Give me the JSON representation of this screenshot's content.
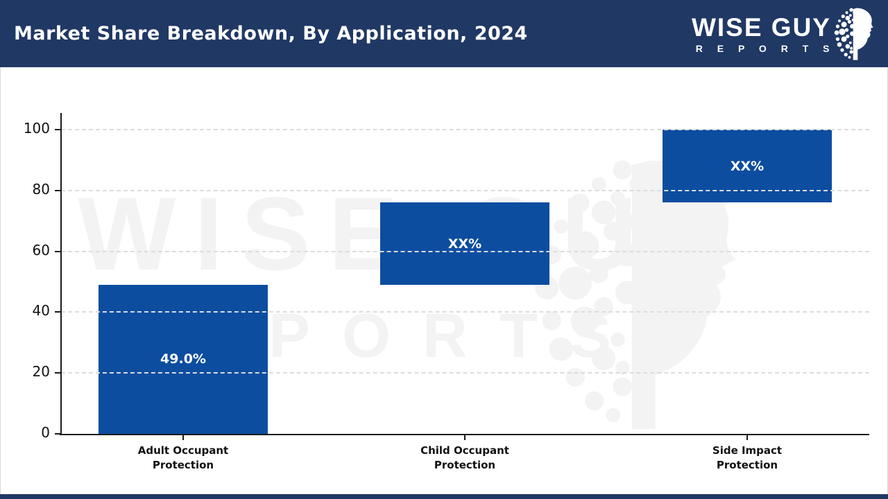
{
  "header": {
    "title": "Market Share Breakdown, By Application, 2024",
    "brand": {
      "name": "WISE GUY",
      "sub": "R E P O R T S"
    }
  },
  "watermark": {
    "line1": "WISE GUY",
    "line2": "REPORTS"
  },
  "colors": {
    "header_bg": "#203864",
    "bar_fill": "#0c4da0",
    "bar_label": "#ffffff",
    "grid": "#dcdcdc",
    "axis": "#1a1a1a",
    "tick_label": "#111111",
    "watermark": "#f3f3f3"
  },
  "chart_data": {
    "type": "bar",
    "subtype": "waterfall",
    "title": "Market Share Breakdown, By Application, 2024",
    "categories": [
      {
        "line1": "Adult Occupant",
        "line2": "Protection"
      },
      {
        "line1": "Child Occupant",
        "line2": "Protection"
      },
      {
        "line1": "Side Impact",
        "line2": "Protection"
      }
    ],
    "segments": [
      {
        "category": "Adult Occupant Protection",
        "start": 0,
        "end": 49,
        "label": "49.0%"
      },
      {
        "category": "Child Occupant Protection",
        "start": 49,
        "end": 76,
        "label": "XX%"
      },
      {
        "category": "Side Impact Protection",
        "start": 76,
        "end": 100,
        "label": "XX%"
      }
    ],
    "xlabel": "",
    "ylabel": "",
    "ylim": [
      0,
      100
    ],
    "yticks": [
      0,
      20,
      40,
      60,
      80,
      100
    ],
    "grid": "horizontal-dashed",
    "legend": "none"
  }
}
